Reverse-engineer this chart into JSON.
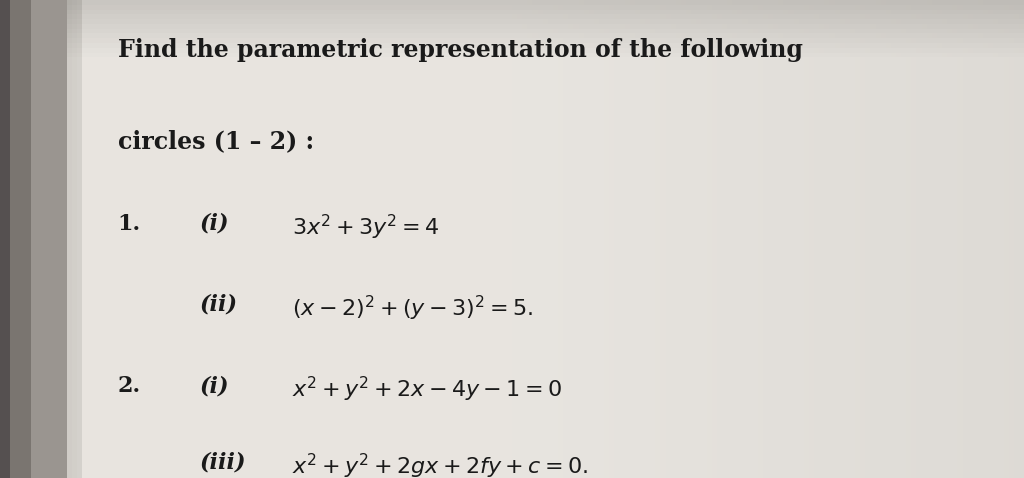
{
  "bg_color_center": "#e8e5e0",
  "bg_color_edge": "#b0aca6",
  "spine_color": "#6a6560",
  "text_color": "#1a1a1a",
  "title_line1": "Find the parametric representation of the following",
  "title_line2": "circles (1 – 2) :",
  "items": [
    {
      "number": "1.",
      "sub": "(i)",
      "equation": "$3x^2+3y^2=4$"
    },
    {
      "number": "",
      "sub": "(ii)",
      "equation": "$(x-2)^2+(y-3)^2=5.$"
    },
    {
      "number": "2.",
      "sub": "(i)",
      "equation": "$x^2+y^2+2x-4y-1=0$"
    },
    {
      "number": "",
      "sub": "(iii)",
      "equation": "$x^2+y^2+2gx+2fy+c=0.$"
    }
  ],
  "figsize": [
    10.24,
    4.78
  ],
  "dpi": 100
}
